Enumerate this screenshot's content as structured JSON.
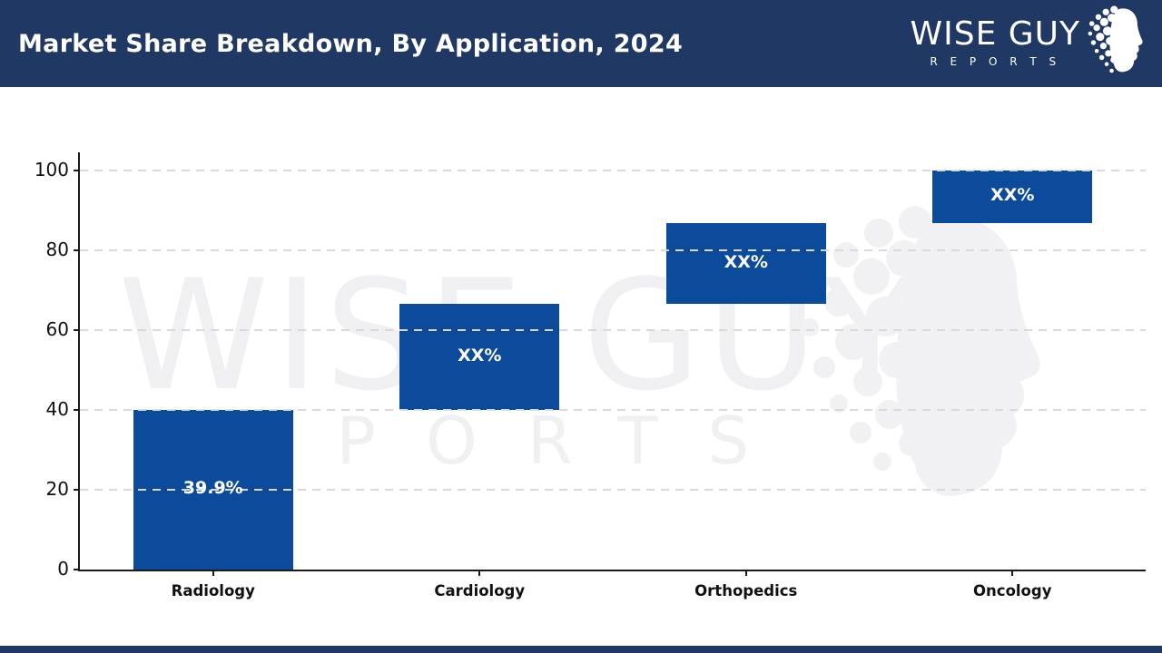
{
  "header": {
    "title": "Market Share Breakdown, By Application, 2024",
    "logo_line1": "WISE GUY",
    "logo_line2": "R E P O R T S"
  },
  "watermark": {
    "line1": "WISE GUY",
    "line2": "REPORTS"
  },
  "colors": {
    "header_bg": "#203864",
    "footer_bg": "#203864",
    "bar": "#0c4a9c",
    "grid": "#d9d9d9",
    "watermark": "#f0f0f2"
  },
  "chart_data": {
    "type": "bar",
    "subtype": "waterfall",
    "title": "Market Share Breakdown, By Application, 2024",
    "categories": [
      "Radiology",
      "Cardiology",
      "Orthopedics",
      "Oncology"
    ],
    "segments": [
      {
        "category": "Radiology",
        "start": 0,
        "end": 39.9,
        "label": "39.9%"
      },
      {
        "category": "Cardiology",
        "start": 39.9,
        "end": 66.5,
        "label": "XX%"
      },
      {
        "category": "Orthopedics",
        "start": 66.5,
        "end": 86.9,
        "label": "XX%"
      },
      {
        "category": "Oncology",
        "start": 86.9,
        "end": 100,
        "label": "XX%"
      }
    ],
    "ylim": [
      0,
      100
    ],
    "yticks": [
      0,
      20,
      40,
      60,
      80,
      100
    ],
    "xlabel": "",
    "ylabel": "",
    "grid": "horizontal-dashed",
    "legend": "none"
  }
}
